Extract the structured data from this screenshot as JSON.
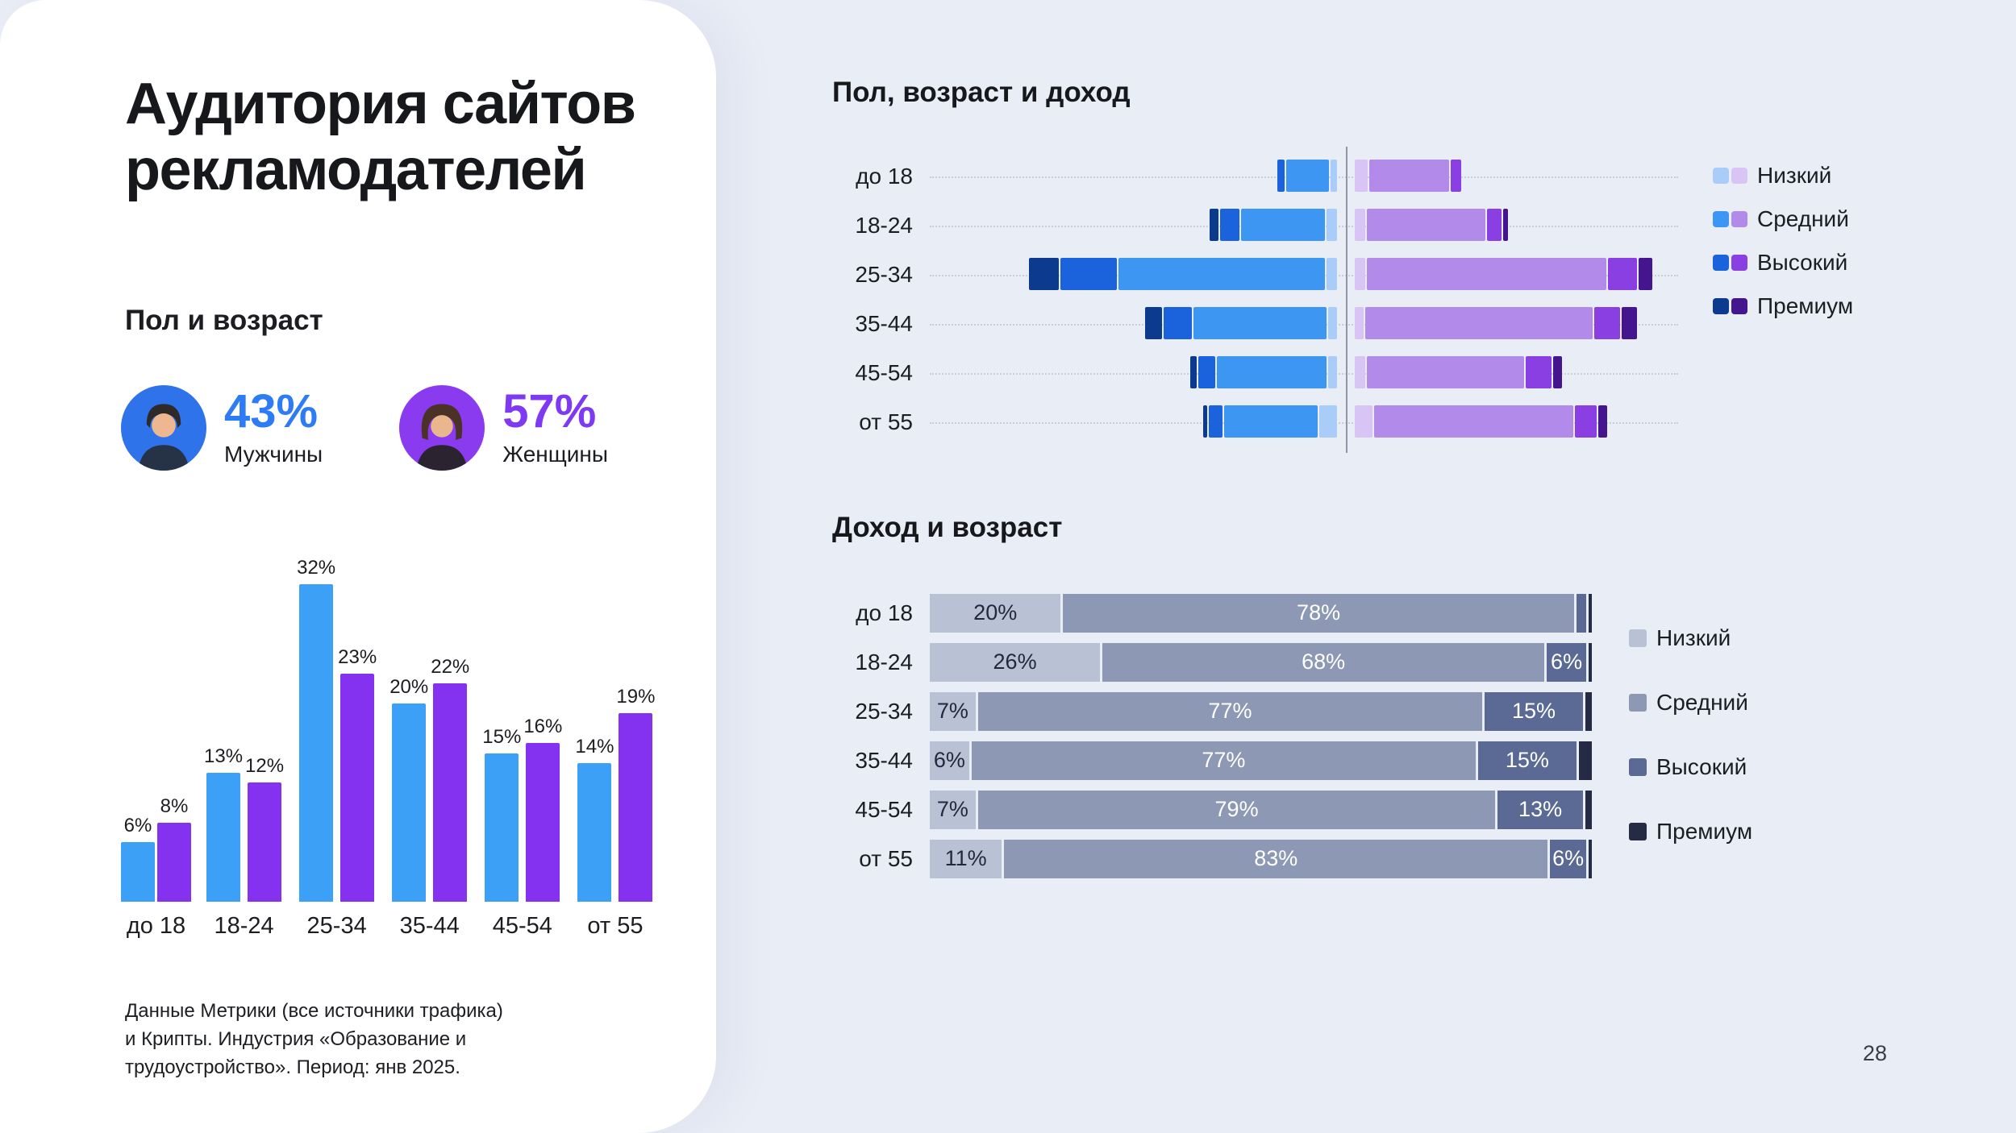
{
  "page": {
    "number": "28"
  },
  "left_panel": {
    "title_lines": [
      "Аудитория сайтов",
      "рекламодателей"
    ],
    "section_title": "Пол и возраст",
    "genders": [
      {
        "value": "43%",
        "label": "Мужчины",
        "color": "#2e7cf5"
      },
      {
        "value": "57%",
        "label": "Женщины",
        "color": "#7e3af2"
      }
    ],
    "footnote_lines": [
      "Данные Метрики (все источники трафика)",
      "и Крипты. Индустрия «Образование и",
      "трудоустройство». Период: янв 2025."
    ]
  },
  "chart_data": [
    {
      "id": "gender-age-bars",
      "type": "bar",
      "categories": [
        "до 18",
        "18-24",
        "25-34",
        "35-44",
        "45-54",
        "от 55"
      ],
      "series": [
        {
          "name": "Мужчины",
          "color": "#3da0f7",
          "values": [
            6,
            13,
            32,
            20,
            15,
            14
          ]
        },
        {
          "name": "Женщины",
          "color": "#8531f0",
          "values": [
            8,
            12,
            23,
            22,
            16,
            19
          ]
        }
      ],
      "value_suffix": "%",
      "ylim": [
        0,
        35
      ],
      "grid": false,
      "value_labels": true
    },
    {
      "id": "gender-age-income",
      "type": "diverging_stacked_bar",
      "title": "Пол, возраст и доход",
      "categories": [
        "до 18",
        "18-24",
        "25-34",
        "35-44",
        "45-54",
        "от 55"
      ],
      "levels": [
        "Низкий",
        "Средний",
        "Высокий",
        "Премиум"
      ],
      "male": {
        "name": "Мужчины",
        "colors": [
          "#a9cdf8",
          "#3e96f3",
          "#1a63dd",
          "#0b3a8f"
        ],
        "rows": [
          [
            5,
            33,
            6,
            0
          ],
          [
            8,
            65,
            15,
            7
          ],
          [
            8,
            160,
            44,
            23
          ],
          [
            7,
            103,
            22,
            13
          ],
          [
            7,
            85,
            13,
            5
          ],
          [
            14,
            72,
            11,
            3
          ]
        ]
      },
      "female": {
        "name": "Женщины",
        "colors": [
          "#d8c5f6",
          "#b28ae9",
          "#8a3fe3",
          "#45148f"
        ],
        "rows": [
          [
            10,
            62,
            8,
            0
          ],
          [
            8,
            92,
            11,
            4
          ],
          [
            8,
            186,
            22,
            11
          ],
          [
            7,
            176,
            20,
            12
          ],
          [
            8,
            122,
            20,
            7
          ],
          [
            14,
            154,
            17,
            7
          ]
        ]
      },
      "legend_position": "right"
    },
    {
      "id": "income-age",
      "type": "stacked_bar_horizontal",
      "title": "Доход и возраст",
      "categories": [
        "до 18",
        "18-24",
        "25-34",
        "35-44",
        "45-54",
        "от 55"
      ],
      "levels": [
        {
          "name": "Низкий",
          "color": "#b9c1d4",
          "label_color": "#23283a"
        },
        {
          "name": "Средний",
          "color": "#8d98b4",
          "label_color": "#ffffff"
        },
        {
          "name": "Высокий",
          "color": "#5b6a94",
          "label_color": "#ffffff"
        },
        {
          "name": "Премиум",
          "color": "#262b45",
          "label_color": "#ffffff"
        }
      ],
      "rows": [
        {
          "category": "до 18",
          "values": [
            20,
            78,
            1.5,
            0.5
          ],
          "labels": [
            "20%",
            "78%",
            "",
            ""
          ]
        },
        {
          "category": "18-24",
          "values": [
            26,
            67.5,
            6,
            0.5
          ],
          "labels": [
            "26%",
            "68%",
            "6%",
            ""
          ]
        },
        {
          "category": "25-34",
          "values": [
            7,
            77,
            15,
            1
          ],
          "labels": [
            "7%",
            "77%",
            "15%",
            ""
          ]
        },
        {
          "category": "35-44",
          "values": [
            6,
            77,
            15,
            2
          ],
          "labels": [
            "6%",
            "77%",
            "15%",
            ""
          ]
        },
        {
          "category": "45-54",
          "values": [
            7,
            79,
            13,
            1
          ],
          "labels": [
            "7%",
            "79%",
            "13%",
            ""
          ]
        },
        {
          "category": "от 55",
          "values": [
            11,
            83,
            5.5,
            0.5
          ],
          "labels": [
            "11%",
            "83%",
            "6%",
            ""
          ]
        }
      ],
      "legend_position": "right"
    }
  ]
}
